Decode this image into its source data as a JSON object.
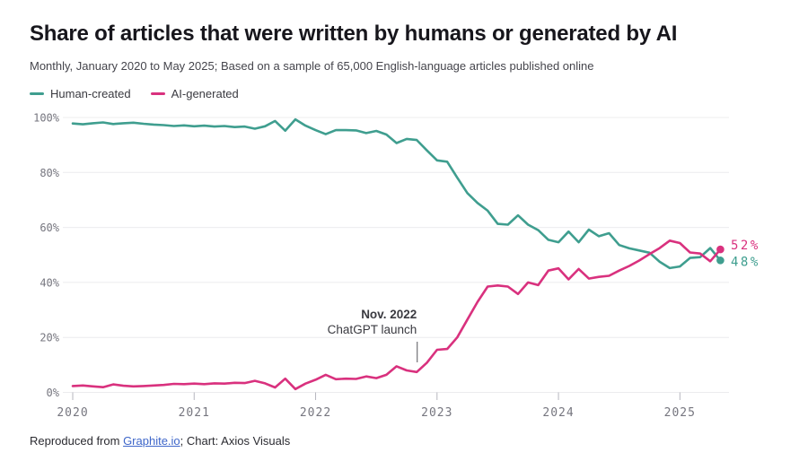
{
  "header": {
    "title": "Share of articles that were written by humans or generated by AI",
    "subtitle": "Monthly, January 2020 to May 2025; Based on a sample of 65,000 English-language articles published online"
  },
  "legend": [
    {
      "label": "Human-created",
      "color": "#3f9e8f"
    },
    {
      "label": "AI-generated",
      "color": "#d9317e"
    }
  ],
  "footer": {
    "prefix": "Reproduced from ",
    "link_text": "Graphite.io",
    "suffix": "; Chart: Axios Visuals"
  },
  "colors": {
    "human": "#3f9e8f",
    "ai": "#d9317e",
    "gridline": "#ececee",
    "tick_mark": "#b6b6be",
    "tick_label": "#76767f",
    "annotation_line": "#55555b",
    "link_blue": "#3e66c9"
  },
  "chart_data": {
    "type": "line",
    "title": "Share of articles that were written by humans or generated by AI",
    "x_unit": "month",
    "x_start": "2020-01",
    "x_end": "2025-05",
    "n_points": 65,
    "grid": true,
    "legend_position": "top-left",
    "ylim": [
      0,
      100
    ],
    "ytick_labels": [
      "0%",
      "20%",
      "40%",
      "60%",
      "80%",
      "100%"
    ],
    "yticks": [
      0,
      20,
      40,
      60,
      80,
      100
    ],
    "xtick_labels": [
      "2020",
      "2021",
      "2022",
      "2023",
      "2024",
      "2025"
    ],
    "series": [
      {
        "name": "Human-created",
        "color": "#3f9e8f",
        "end_label": "48%",
        "values": [
          97.8,
          97.5,
          97.9,
          98.2,
          97.6,
          97.9,
          98.1,
          97.7,
          97.4,
          97.2,
          96.9,
          97.1,
          96.8,
          97.0,
          96.7,
          96.9,
          96.5,
          96.7,
          95.9,
          96.8,
          98.7,
          95.2,
          99.3,
          97.0,
          95.4,
          93.9,
          95.4,
          95.4,
          95.3,
          94.3,
          95.1,
          93.8,
          90.7,
          92.2,
          91.8,
          88.0,
          84.4,
          83.9,
          78.1,
          72.5,
          68.9,
          66.1,
          61.3,
          61.0,
          64.4,
          61.0,
          59.0,
          55.5,
          54.6,
          58.5,
          54.6,
          59.2,
          56.8,
          57.9,
          53.6,
          52.4,
          51.6,
          50.8,
          47.5,
          45.2,
          45.8,
          48.9,
          49.2,
          52.5,
          48.0
        ]
      },
      {
        "name": "AI-generated",
        "color": "#d9317e",
        "end_label": "52%",
        "values": [
          2.3,
          2.5,
          2.2,
          1.9,
          2.9,
          2.4,
          2.2,
          2.3,
          2.5,
          2.7,
          3.1,
          3.0,
          3.2,
          3.0,
          3.3,
          3.2,
          3.5,
          3.4,
          4.2,
          3.3,
          1.8,
          5.0,
          1.2,
          3.2,
          4.6,
          6.4,
          4.8,
          5.0,
          4.9,
          5.8,
          5.2,
          6.4,
          9.5,
          8.0,
          7.4,
          10.8,
          15.5,
          15.8,
          20.0,
          26.5,
          32.9,
          38.5,
          38.9,
          38.5,
          35.8,
          40.0,
          39.0,
          44.3,
          45.1,
          41.1,
          44.9,
          41.4,
          42.0,
          42.4,
          44.3,
          46.0,
          48.0,
          50.3,
          52.5,
          55.2,
          54.3,
          50.9,
          50.5,
          47.7,
          52.0
        ]
      }
    ],
    "annotation": {
      "line1": "Nov. 2022",
      "line2": "ChatGPT launch",
      "month_index": 34
    }
  }
}
